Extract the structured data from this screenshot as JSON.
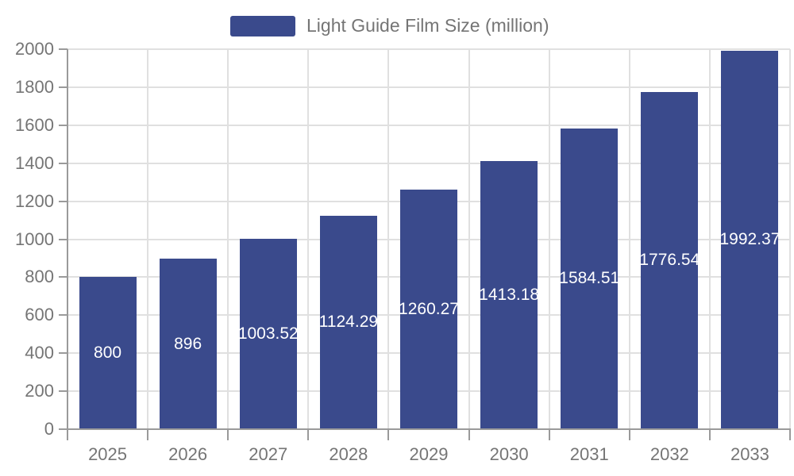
{
  "legend": {
    "label": "Light Guide Film Size (million)"
  },
  "chart_data": {
    "type": "bar",
    "title": "",
    "categories": [
      "2025",
      "2026",
      "2027",
      "2028",
      "2029",
      "2030",
      "2031",
      "2032",
      "2033"
    ],
    "series": [
      {
        "name": "Light Guide Film Size (million)",
        "values": [
          800,
          896,
          1003.52,
          1124.29,
          1260.27,
          1413.18,
          1584.51,
          1776.54,
          1992.37
        ],
        "labels": [
          "800",
          "896",
          "1003.52",
          "1124.29",
          "1260.27",
          "1413.18",
          "1584.51",
          "1776.54",
          "1992.37"
        ]
      }
    ],
    "xlabel": "",
    "ylabel": "",
    "ylim": [
      0,
      2000
    ],
    "y_ticks": [
      0,
      200,
      400,
      600,
      800,
      1000,
      1200,
      1400,
      1600,
      1800,
      2000
    ],
    "grid": true,
    "legend_position": "top-center",
    "value_label_position": "inside-center"
  },
  "colors": {
    "bar": "#3A4A8C",
    "axis_text": "#757575",
    "bar_label_text": "#FFFFFF",
    "gridline": "#E0E0E0",
    "axis_line": "#9A9A9A",
    "background": "#FFFFFF"
  }
}
